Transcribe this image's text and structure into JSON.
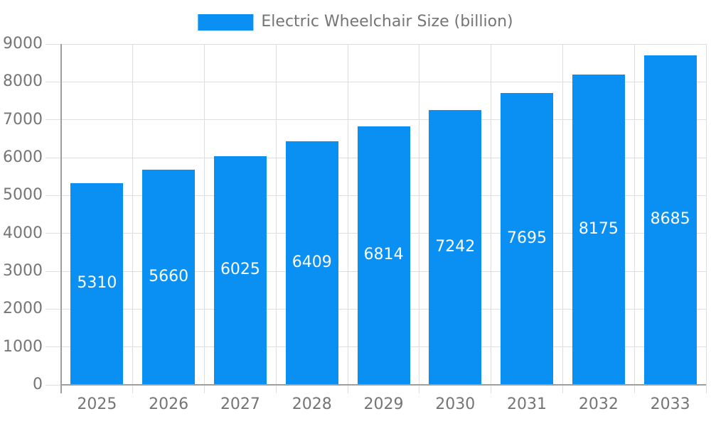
{
  "legend": {
    "label": "Electric Wheelchair Size (billion)"
  },
  "colors": {
    "bar": "#0a8ff2",
    "axis": "#9e9e9e",
    "grid": "#dedede",
    "tick_text": "#757575",
    "bar_label": "#ffffff",
    "background": "#ffffff"
  },
  "chart_data": {
    "type": "bar",
    "title": "Electric Wheelchair Size (billion)",
    "categories": [
      "2025",
      "2026",
      "2027",
      "2028",
      "2029",
      "2030",
      "2031",
      "2032",
      "2033"
    ],
    "series": [
      {
        "name": "Electric Wheelchair Size (billion)",
        "values": [
          5310,
          5660,
          6025,
          6409,
          6814,
          7242,
          7695,
          8175,
          8685
        ]
      }
    ],
    "xlabel": "",
    "ylabel": "",
    "ylim": [
      0,
      9000
    ],
    "ytick_step": 1000,
    "grid": true,
    "legend_position": "top",
    "bar_value_labels": "inside-center"
  }
}
